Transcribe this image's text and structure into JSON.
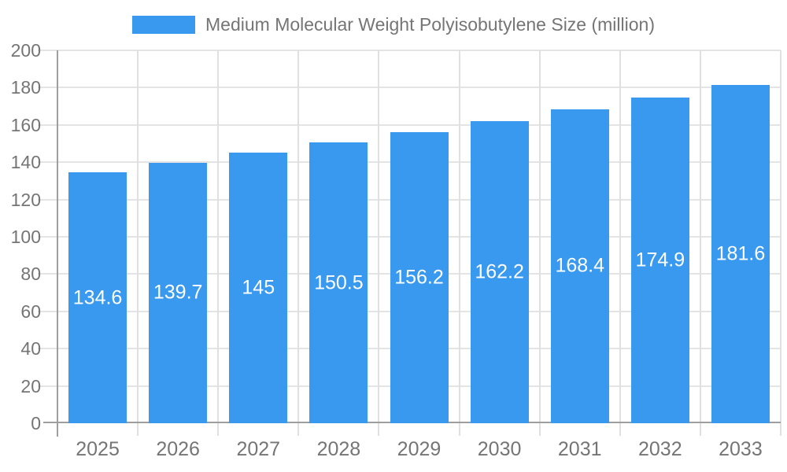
{
  "legend": {
    "label": "Medium Molecular Weight Polyisobutylene Size (million)"
  },
  "chart_data": {
    "type": "bar",
    "title": "Medium Molecular Weight Polyisobutylene Size (million)",
    "categories": [
      "2025",
      "2026",
      "2027",
      "2028",
      "2029",
      "2030",
      "2031",
      "2032",
      "2033"
    ],
    "values": [
      134.6,
      139.7,
      145,
      150.5,
      156.2,
      162.2,
      168.4,
      174.9,
      181.6
    ],
    "series": [
      {
        "name": "Medium Molecular Weight Polyisobutylene Size (million)",
        "values": [
          134.6,
          139.7,
          145,
          150.5,
          156.2,
          162.2,
          168.4,
          174.9,
          181.6
        ]
      }
    ],
    "xlabel": "",
    "ylabel": "",
    "ylim": [
      0,
      200
    ],
    "ytick_step": 20,
    "ytick_labels": [
      "0",
      "20",
      "40",
      "60",
      "80",
      "100",
      "120",
      "140",
      "160",
      "180",
      "200"
    ],
    "grid": true,
    "legend_position": "top",
    "value_labels_inside_bars": true,
    "colors": {
      "bar": "#3999ee",
      "axis": "#9e9e9e",
      "grid": "#e4e4e4",
      "tick_text": "#757575",
      "value_label_text": "#ffffff",
      "background": "#ffffff"
    }
  }
}
